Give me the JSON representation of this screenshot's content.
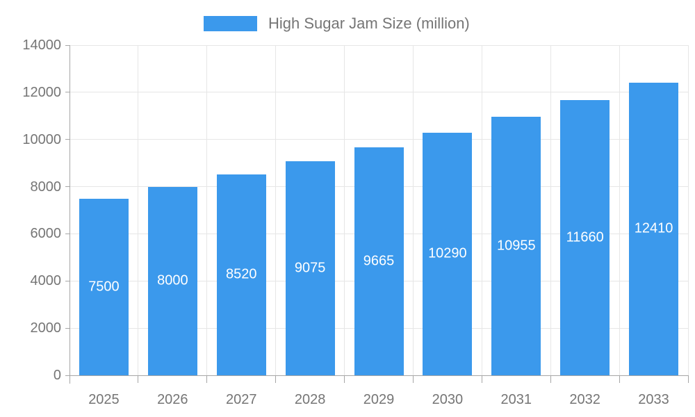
{
  "chart_data": {
    "type": "bar",
    "title": "High Sugar Jam Size (million)",
    "series": [
      {
        "name": "High Sugar Jam Size (million)",
        "values": [
          7500,
          8000,
          8520,
          9075,
          9665,
          10290,
          10955,
          11660,
          12410
        ]
      }
    ],
    "categories": [
      "2025",
      "2026",
      "2027",
      "2028",
      "2029",
      "2030",
      "2031",
      "2032",
      "2033"
    ],
    "xlabel": "",
    "ylabel": "",
    "ylim": [
      0,
      14000
    ],
    "ytick_step": 2000,
    "ytick_labels": [
      "0",
      "2000",
      "4000",
      "6000",
      "8000",
      "10000",
      "12000",
      "14000"
    ],
    "grid": "horizontal and vertical gridlines on",
    "legend_position": "top-center",
    "value_labels": "centered inside bars, white",
    "colors": {
      "bar": "#3B99EC",
      "value_label": "#FFFFFF",
      "axis_text": "#757575",
      "gridline": "#E6E6E6",
      "axis_line": "#A6A6A6",
      "background": "#FFFFFF"
    }
  }
}
